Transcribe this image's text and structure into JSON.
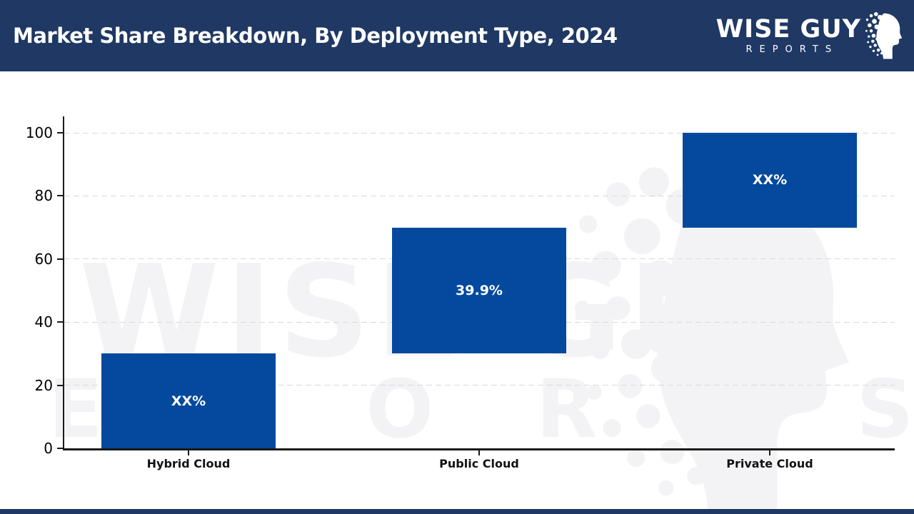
{
  "header": {
    "title": "Market Share Breakdown, By Deployment Type, 2024",
    "bg_color": "#1f3864",
    "logo": {
      "line1": "WISE GUY",
      "line2": "REPORTS"
    }
  },
  "watermark": {
    "line1": "WISE GUY",
    "line2": "R E P O R T S"
  },
  "chart_data": {
    "type": "bar",
    "variant": "floating-segment-breakdown",
    "title": "Market Share Breakdown, By Deployment Type, 2024",
    "categories": [
      "Hybrid Cloud",
      "Public Cloud",
      "Private Cloud"
    ],
    "segments": [
      {
        "category": "Hybrid Cloud",
        "start": 0,
        "end": 30,
        "label": "XX%"
      },
      {
        "category": "Public Cloud",
        "start": 30,
        "end": 70,
        "label": "39.9%"
      },
      {
        "category": "Private Cloud",
        "start": 70,
        "end": 100,
        "label": "XX%"
      }
    ],
    "y_ticks": [
      0,
      20,
      40,
      60,
      80,
      100
    ],
    "ylim": [
      0,
      107
    ],
    "xlabel": "",
    "ylabel": "",
    "bar_color": "#04499d",
    "bar_label_color": "#ffffff",
    "grid": {
      "horizontal": true,
      "style": "dashed",
      "color": "#d9d9d9"
    },
    "legend": "none"
  },
  "footer": {
    "bg_color": "#1f3864"
  }
}
